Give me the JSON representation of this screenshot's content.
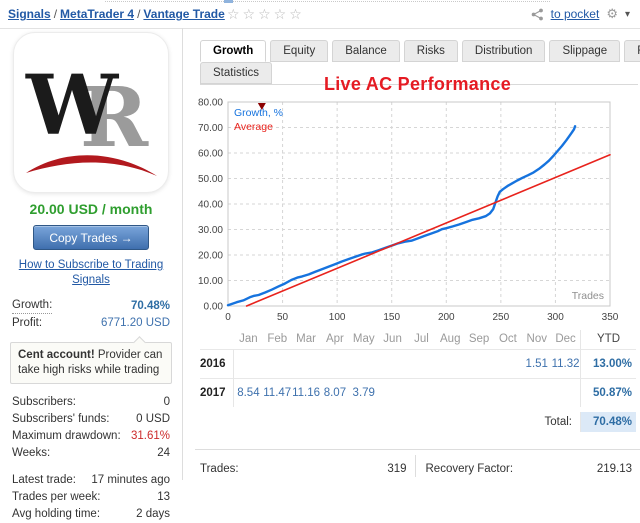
{
  "header": {
    "breadcrumb": [
      "Signals",
      "MetaTrader 4",
      "Vantage Trade"
    ],
    "rating_stars": "☆☆☆☆☆",
    "to_pocket_label": "to pocket",
    "gear_glyph": "⚙",
    "caret_glyph": "▾"
  },
  "tabs": {
    "row1": [
      "Growth",
      "Equity",
      "Balance",
      "Risks",
      "Distribution",
      "Slippage",
      "Reviews"
    ],
    "row2": [
      "Statistics"
    ],
    "active": "Growth"
  },
  "sidebar": {
    "logo": {
      "letter1": "W",
      "letter2": "R"
    },
    "price": "20.00 USD / month",
    "copy_button": "Copy Trades →",
    "subscribe_link": "How to Subscribe to Trading Signals",
    "account_stats": [
      {
        "label": "Growth:",
        "value": "70.48%",
        "style": "accent-bold",
        "dotted": true
      },
      {
        "label": "Profit:",
        "value": "6771.20 USD",
        "style": "accent"
      }
    ],
    "warning": {
      "bold": "Cent account!",
      "text": " Provider can take high risks while trading"
    },
    "subscriber_stats": [
      {
        "label": "Subscribers:",
        "value": "0"
      },
      {
        "label": "Subscribers' funds:",
        "value": "0 USD"
      },
      {
        "label": "Maximum drawdown:",
        "value": "31.61%",
        "style": "danger"
      },
      {
        "label": "Weeks:",
        "value": "24"
      }
    ],
    "activity_stats": [
      {
        "label": "Latest trade:",
        "value": "17 minutes ago"
      },
      {
        "label": "Trades per week:",
        "value": "13"
      },
      {
        "label": "Avg holding time:",
        "value": "2 days"
      }
    ]
  },
  "chart_data": {
    "type": "line",
    "title": "Live AC Performance",
    "title_color": "#e51b23",
    "xlabel": "Trades",
    "ylabel": "",
    "xlim": [
      0,
      350
    ],
    "ylim": [
      0,
      80
    ],
    "xticks": [
      0,
      50,
      100,
      150,
      200,
      250,
      300,
      350
    ],
    "yticks": [
      0,
      10,
      20,
      30,
      40,
      50,
      60,
      70,
      80
    ],
    "grid": true,
    "legend_position": "top-left",
    "legend": [
      {
        "name": "Growth, %",
        "color": "#1673de"
      },
      {
        "name": "Average",
        "color": "#e8231d"
      }
    ],
    "marker": {
      "x": 31,
      "color": "#8b0000"
    },
    "series": [
      {
        "name": "Growth, %",
        "color": "#1673de",
        "width": 2.4,
        "points": [
          [
            0,
            0.3
          ],
          [
            8,
            1.5
          ],
          [
            14,
            2.2
          ],
          [
            20,
            3.4
          ],
          [
            24,
            4.0
          ],
          [
            28,
            4.3
          ],
          [
            34,
            5.3
          ],
          [
            40,
            6.4
          ],
          [
            46,
            7.6
          ],
          [
            52,
            8.8
          ],
          [
            58,
            10.2
          ],
          [
            64,
            11.2
          ],
          [
            68,
            11.6
          ],
          [
            74,
            12.4
          ],
          [
            80,
            13.4
          ],
          [
            86,
            14.4
          ],
          [
            92,
            15.4
          ],
          [
            98,
            16.4
          ],
          [
            104,
            17.4
          ],
          [
            110,
            18.3
          ],
          [
            116,
            19.2
          ],
          [
            122,
            20.1
          ],
          [
            126,
            20.6
          ],
          [
            132,
            21.0
          ],
          [
            138,
            21.9
          ],
          [
            144,
            22.8
          ],
          [
            150,
            23.7
          ],
          [
            156,
            24.6
          ],
          [
            162,
            25.2
          ],
          [
            168,
            25.6
          ],
          [
            174,
            26.5
          ],
          [
            180,
            27.5
          ],
          [
            186,
            28.4
          ],
          [
            192,
            29.3
          ],
          [
            196,
            30.1
          ],
          [
            200,
            30.5
          ],
          [
            206,
            31.2
          ],
          [
            212,
            32.0
          ],
          [
            218,
            32.9
          ],
          [
            224,
            33.8
          ],
          [
            230,
            34.4
          ],
          [
            236,
            35.2
          ],
          [
            240,
            36.3
          ],
          [
            243,
            38.0
          ],
          [
            245,
            40.5
          ],
          [
            247,
            43.0
          ],
          [
            249,
            44.8
          ],
          [
            252,
            45.8
          ],
          [
            256,
            47.0
          ],
          [
            260,
            48.0
          ],
          [
            265,
            49.2
          ],
          [
            270,
            50.3
          ],
          [
            275,
            51.3
          ],
          [
            280,
            52.4
          ],
          [
            285,
            53.8
          ],
          [
            290,
            55.5
          ],
          [
            294,
            57.0
          ],
          [
            298,
            58.8
          ],
          [
            302,
            60.8
          ],
          [
            306,
            62.8
          ],
          [
            310,
            65.0
          ],
          [
            313,
            66.8
          ],
          [
            315,
            68.0
          ],
          [
            317,
            69.3
          ],
          [
            318,
            70.5
          ]
        ]
      },
      {
        "name": "Average",
        "color": "#e8231d",
        "width": 1.6,
        "points": [
          [
            17,
            0
          ],
          [
            350,
            59.3
          ]
        ]
      }
    ]
  },
  "monthly_table": {
    "months": [
      "Jan",
      "Feb",
      "Mar",
      "Apr",
      "May",
      "Jun",
      "Jul",
      "Aug",
      "Sep",
      "Oct",
      "Nov",
      "Dec"
    ],
    "ytd_label": "YTD",
    "rows": [
      {
        "year": "2016",
        "values": [
          "",
          "",
          "",
          "",
          "",
          "",
          "",
          "",
          "",
          "",
          "1.51",
          "11.32"
        ],
        "ytd": "13.00%"
      },
      {
        "year": "2017",
        "values": [
          "8.54",
          "11.47",
          "11.16",
          "8.07",
          "3.79",
          "",
          "",
          "",
          "",
          "",
          "",
          ""
        ],
        "ytd": "50.87%"
      }
    ],
    "total_label": "Total:",
    "total_value": "70.48%"
  },
  "footer_stats": [
    {
      "label": "Trades:",
      "value": "319"
    },
    {
      "label": "Recovery Factor:",
      "value": "219.13"
    }
  ]
}
